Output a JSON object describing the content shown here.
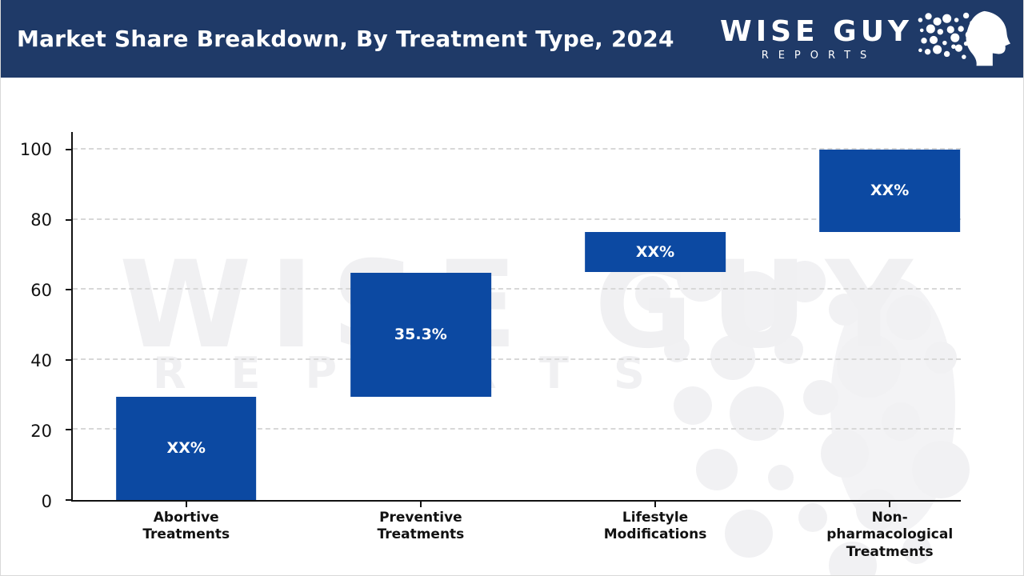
{
  "header": {
    "title": "Market Share Breakdown, By Treatment Type, 2024",
    "logo": {
      "wordmark": "WISE GUY",
      "subtext": "REPORTS"
    }
  },
  "watermark": {
    "wordmark": "WISE GUY",
    "subtext": "REPORTS"
  },
  "chart_data": {
    "type": "bar",
    "subtype": "waterfall",
    "title": "Market Share Breakdown, By Treatment Type, 2024",
    "categories": [
      "Abortive Treatments",
      "Preventive Treatments",
      "Lifestyle Modifications",
      "Non-pharmacological Treatments"
    ],
    "bars": [
      {
        "category": "Abortive Treatments",
        "value_label": "XX%",
        "start": 0,
        "end": 29.5
      },
      {
        "category": "Preventive Treatments",
        "value_label": "35.3%",
        "value": 35.3,
        "start": 29.5,
        "end": 64.8
      },
      {
        "category": "Lifestyle Modifications",
        "value_label": "XX%",
        "start": 65,
        "end": 76.5
      },
      {
        "category": "Non-pharmacological Treatments",
        "value_label": "XX%",
        "start": 76.5,
        "end": 100
      }
    ],
    "yticks": [
      0,
      20,
      40,
      60,
      80,
      100
    ],
    "ylim": [
      0,
      105
    ],
    "xlabel": "",
    "ylabel": "",
    "grid": "horizontal-dashed",
    "legend": "none",
    "colors": {
      "bar": "#0c49a2",
      "bar_label": "#ffffff",
      "header_bg": "#1f3a68",
      "grid": "#d8d8d8",
      "axis": "#111111",
      "watermark": "#f0f0f2"
    }
  }
}
